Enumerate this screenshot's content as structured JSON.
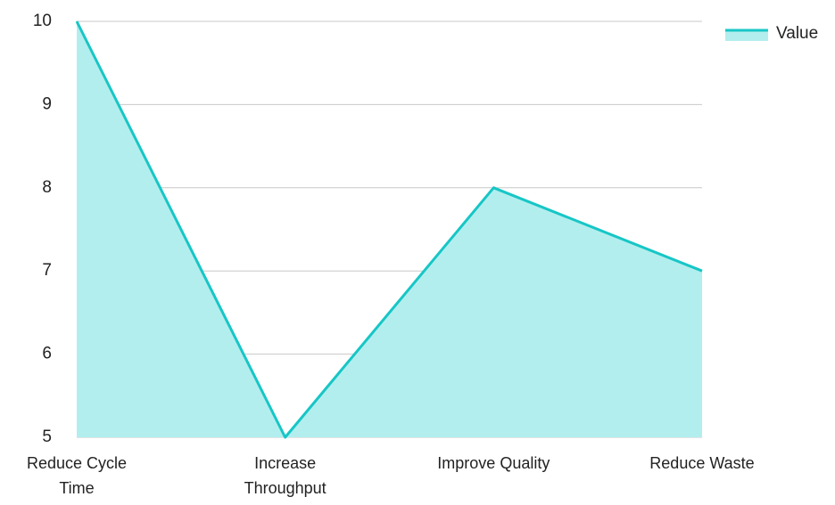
{
  "chart_data": {
    "type": "area",
    "categories": [
      "Reduce Cycle Time",
      "Increase Throughput",
      "Improve Quality",
      "Reduce Waste"
    ],
    "series": [
      {
        "name": "Value",
        "color": "#17c6c6",
        "fill": "#b3eeee",
        "values": [
          10,
          5,
          8,
          7
        ]
      }
    ],
    "ylim": [
      5,
      10
    ],
    "yticks": [
      5,
      6,
      7,
      8,
      9,
      10
    ],
    "grid": true,
    "legend": "top-right"
  }
}
